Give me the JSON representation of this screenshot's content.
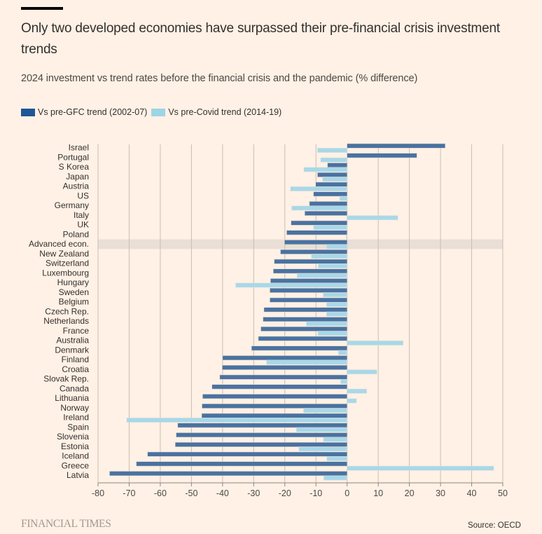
{
  "header": {
    "title": "Only two developed economies have surpassed their pre-financial crisis investment trends",
    "subtitle": "2024 investment vs trend rates before the financial crisis and the pandemic (% difference)"
  },
  "legend": [
    {
      "label": "Vs pre-GFC trend (2002-07)",
      "color": "#1f5696"
    },
    {
      "label": "Vs pre-Covid trend (2014-19)",
      "color": "#9dd4e6"
    }
  ],
  "footer": {
    "brand": "FINANCIAL TIMES",
    "source": "Source: OECD"
  },
  "colors": {
    "background": "#fff1e5",
    "gfc_bar": "#4a72a0",
    "covid_bar": "#a8d8e8",
    "highlight_band": "#e9dfd6",
    "gridline": "#c9bdb3",
    "axis": "#8f857e"
  },
  "chart_data": {
    "type": "bar",
    "orientation": "horizontal",
    "title": "Only two developed economies have surpassed their pre-financial crisis investment trends",
    "subtitle": "2024 investment vs trend rates before the financial crisis and the pandemic (% difference)",
    "xlabel": "",
    "ylabel": "",
    "xlim": [
      -80,
      50
    ],
    "xticks": [
      -80,
      -70,
      -60,
      -50,
      -40,
      -30,
      -20,
      -10,
      0,
      10,
      20,
      30,
      40,
      50
    ],
    "grid": true,
    "legend_position": "top-left",
    "highlighted_category": "Advanced econ.",
    "categories": [
      "Israel",
      "Portugal",
      "S Korea",
      "Japan",
      "Austria",
      "US",
      "Germany",
      "Italy",
      "UK",
      "Poland",
      "Advanced econ.",
      "New Zealand",
      "Switzerland",
      "Luxembourg",
      "Hungary",
      "Sweden",
      "Belgium",
      "Czech Rep.",
      "Netherlands",
      "France",
      "Australia",
      "Denmark",
      "Finland",
      "Croatia",
      "Slovak Rep.",
      "Canada",
      "Lithuania",
      "Norway",
      "Ireland",
      "Spain",
      "Slovenia",
      "Estonia",
      "Iceland",
      "Greece",
      "Latvia"
    ],
    "series": [
      {
        "name": "Vs pre-GFC trend (2002-07)",
        "values": [
          31.5,
          22.4,
          -6.3,
          -9.5,
          -10.1,
          -10.8,
          -12.1,
          -13.6,
          -18.0,
          -19.4,
          -20.1,
          -21.4,
          -23.4,
          -23.7,
          -24.6,
          -24.8,
          -24.8,
          -26.7,
          -27.0,
          -27.7,
          -28.5,
          -30.7,
          -40.0,
          -40.1,
          -40.9,
          -43.4,
          -46.4,
          -46.6,
          -46.7,
          -54.4,
          -54.9,
          -55.2,
          -64.1,
          -67.7,
          -76.3
        ]
      },
      {
        "name": "Vs pre-Covid trend (2014-19)",
        "values": [
          -9.5,
          -8.5,
          -13.9,
          -7.9,
          -18.2,
          -2.4,
          -17.8,
          16.3,
          -10.8,
          -0.3,
          -6.6,
          -11.5,
          -9.3,
          -16.1,
          -35.8,
          -7.7,
          -6.6,
          -6.6,
          -13.1,
          -9.4,
          18.0,
          -2.8,
          -25.9,
          9.6,
          -2.1,
          6.3,
          3.0,
          -14.0,
          -70.8,
          -16.3,
          -7.6,
          -15.5,
          -6.5,
          47.1,
          -7.5
        ]
      }
    ]
  }
}
